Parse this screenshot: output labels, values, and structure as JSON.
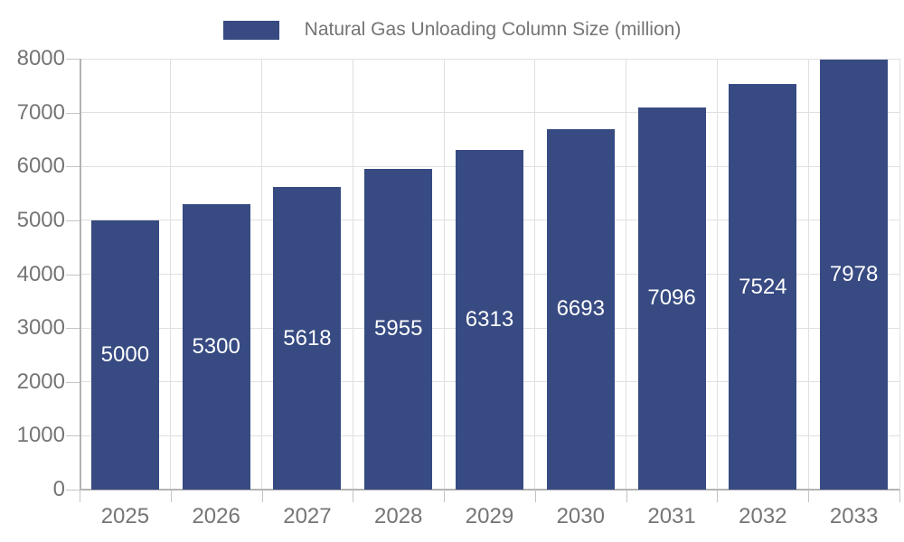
{
  "chart_data": {
    "type": "bar",
    "legend_label": "Natural Gas Unloading Column Size (million)",
    "categories": [
      "2025",
      "2026",
      "2027",
      "2028",
      "2029",
      "2030",
      "2031",
      "2032",
      "2033"
    ],
    "values": [
      5000,
      5300,
      5618,
      5955,
      6313,
      6693,
      7096,
      7524,
      7978
    ],
    "ylim": [
      0,
      8000
    ],
    "yticks": [
      0,
      1000,
      2000,
      3000,
      4000,
      5000,
      6000,
      7000,
      8000
    ],
    "grid": true,
    "legend_position": "top-center",
    "value_labels": "inside-center",
    "colors": {
      "bar": "#374a82",
      "value_label": "#ffffff",
      "axis_text": "#757575",
      "legend_text": "#757575",
      "gridline": "#e0e0e0",
      "axis_line": "#b3b3b3",
      "tick": "#c4c4c4",
      "background": "#ffffff"
    }
  }
}
